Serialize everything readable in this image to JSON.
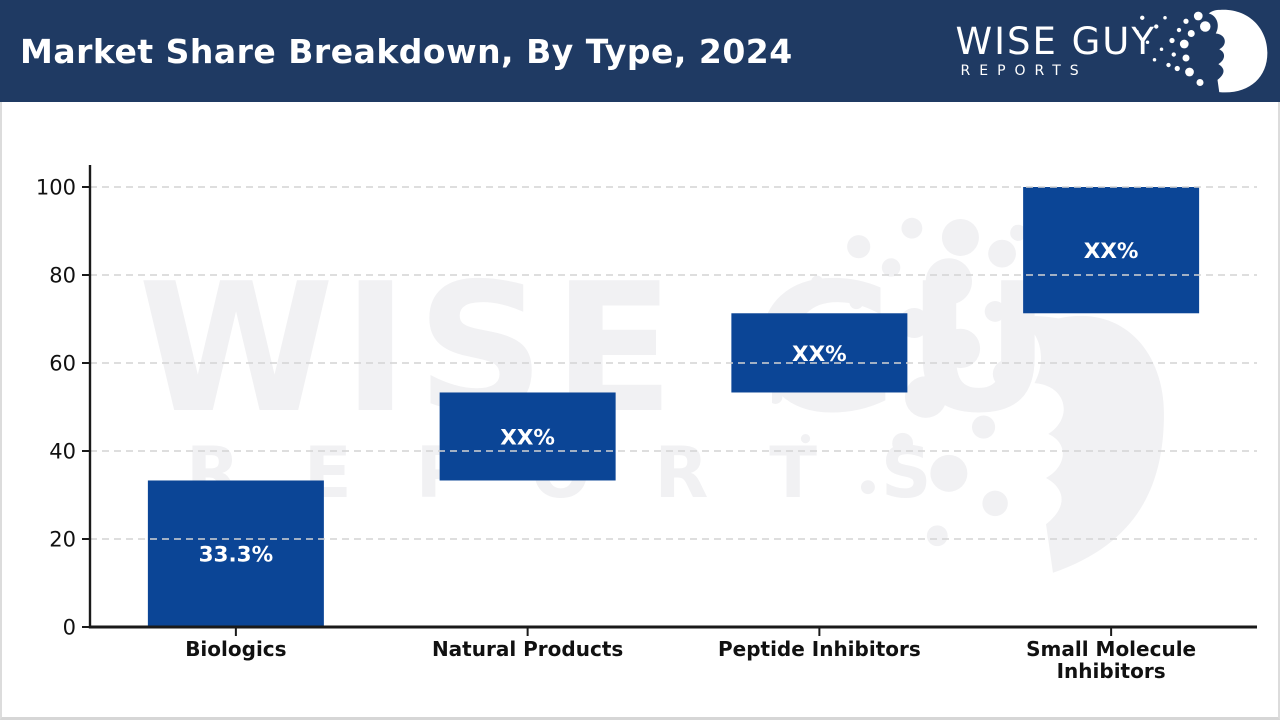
{
  "header": {
    "title": "Market Share Breakdown, By Type, 2024",
    "logo": {
      "name": "WISE GUY",
      "sub": "REPORTS"
    }
  },
  "watermark": {
    "line1": "WISE GU",
    "line2": "REPORTS"
  },
  "colors": {
    "header_bg": "#1f3a63",
    "bar": "#0b4596",
    "grid": "#d4d4d4",
    "axis": "#1a1a1a",
    "tick_text": "#111111",
    "bar_label": "#ffffff",
    "watermark": "#f1f1f3",
    "frame": "#dcdcdc"
  },
  "chart_data": {
    "type": "bar",
    "subtype": "waterfall",
    "title": "Market Share Breakdown, By Type, 2024",
    "categories": [
      "Biologics",
      "Natural Products",
      "Peptide Inhibitors",
      "Small Molecule\nInhibitors"
    ],
    "segments": [
      {
        "category": "Biologics",
        "start": 0,
        "end": 33.3,
        "label": "33.3%"
      },
      {
        "category": "Natural Products",
        "start": 33.3,
        "end": 53.3,
        "label": "XX%"
      },
      {
        "category": "Peptide Inhibitors",
        "start": 53.3,
        "end": 71.3,
        "label": "XX%"
      },
      {
        "category": "Small Molecule Inhibitors",
        "start": 71.3,
        "end": 100,
        "label": "XX%"
      }
    ],
    "xlabel": "",
    "ylabel": "",
    "yticks": [
      0,
      20,
      40,
      60,
      80,
      100
    ],
    "ylim": [
      0,
      105
    ],
    "grid": "horizontal-dashed",
    "grid_over_bars": true,
    "legend": "none",
    "bar_color": "#0b4596",
    "label_color": "#ffffff"
  }
}
